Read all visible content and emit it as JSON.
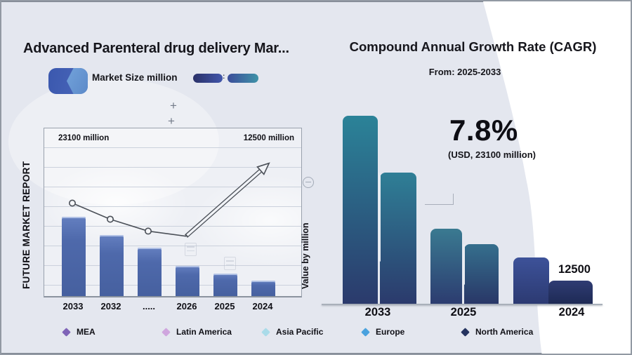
{
  "left_panel": {
    "title": "Advanced Parenteral drug delivery Mar...",
    "legend_label": "Market Size million",
    "pills_separator": ":",
    "watermark": "FUTURE MARKET REPORT",
    "axis_label": "Value by million",
    "top_left_value": "23100 million",
    "top_right_value": "12500 million"
  },
  "right_panel": {
    "title": "Compound Annual Growth Rate (CAGR)",
    "subtitle": "From: 2025-2033",
    "cagr_value": "7.8%",
    "cagr_note": "(USD, 23100 million)",
    "end_value_label": "12500"
  },
  "legend": {
    "items": [
      {
        "label": "MEA",
        "color": "#7e63b7"
      },
      {
        "label": "Latin America",
        "color": "#cfa6de"
      },
      {
        "label": "Asia Pacific",
        "color": "#aadbe9"
      },
      {
        "label": "Europe",
        "color": "#4aa2de"
      },
      {
        "label": "North America",
        "color": "#25335f"
      }
    ]
  },
  "icons": {
    "header": "cylinder-3d-icon",
    "zoom_out": "minus-circle-icon",
    "plus_marks": "plus-icon"
  },
  "colors": {
    "background": "#e4e7ef",
    "left_bar_top": "#647fc0",
    "left_bar_bottom": "#46609f",
    "trend_line": "#4b5058",
    "gridline": "#cbd1dc"
  },
  "chart_data": [
    {
      "type": "bar",
      "title": "Advanced Parenteral drug delivery Market Size (million)",
      "ylabel": "Value by million",
      "categories": [
        "2033",
        "2032",
        ".....",
        "2026",
        "2025",
        "2024"
      ],
      "bar_heights_pct": [
        46.7,
        36.0,
        28.5,
        17.8,
        13.2,
        9.1
      ],
      "labeled_values": {
        "2033": 23100,
        "2024": 12500
      },
      "start_label": "23100 million",
      "end_label": "12500 million",
      "line": {
        "points_y_pct": [
          44.0,
          53.5,
          60.5,
          63.5
        ],
        "arrow_end": {
          "x_pct": 87.0,
          "y_pct": 20.5
        }
      },
      "grid": true
    },
    {
      "type": "bar",
      "title": "Compound Annual Growth Rate (CAGR)",
      "subtitle": "From: 2025-2033",
      "cagr_pct": 7.8,
      "annotation": "(USD, 23100 million)",
      "end_value": 12500,
      "categories": [
        "2033",
        "2025",
        "2024"
      ],
      "pair_heights_pct": [
        [
          95.4,
          66.5
        ],
        [
          38.0,
          30.2
        ],
        [
          23.5,
          11.7
        ]
      ],
      "pair_colors": [
        [
          [
            "#2b8398",
            "#2b3a6c"
          ],
          [
            "#2f7f96",
            "#2b3a6c"
          ]
        ],
        [
          [
            "#3a7a91",
            "#2c3c70"
          ],
          [
            "#356f8d",
            "#293767"
          ]
        ],
        [
          [
            "#3d5299",
            "#2c3a72"
          ],
          [
            "#2f3c73",
            "#1e2a55"
          ]
        ]
      ],
      "grid": false
    }
  ]
}
